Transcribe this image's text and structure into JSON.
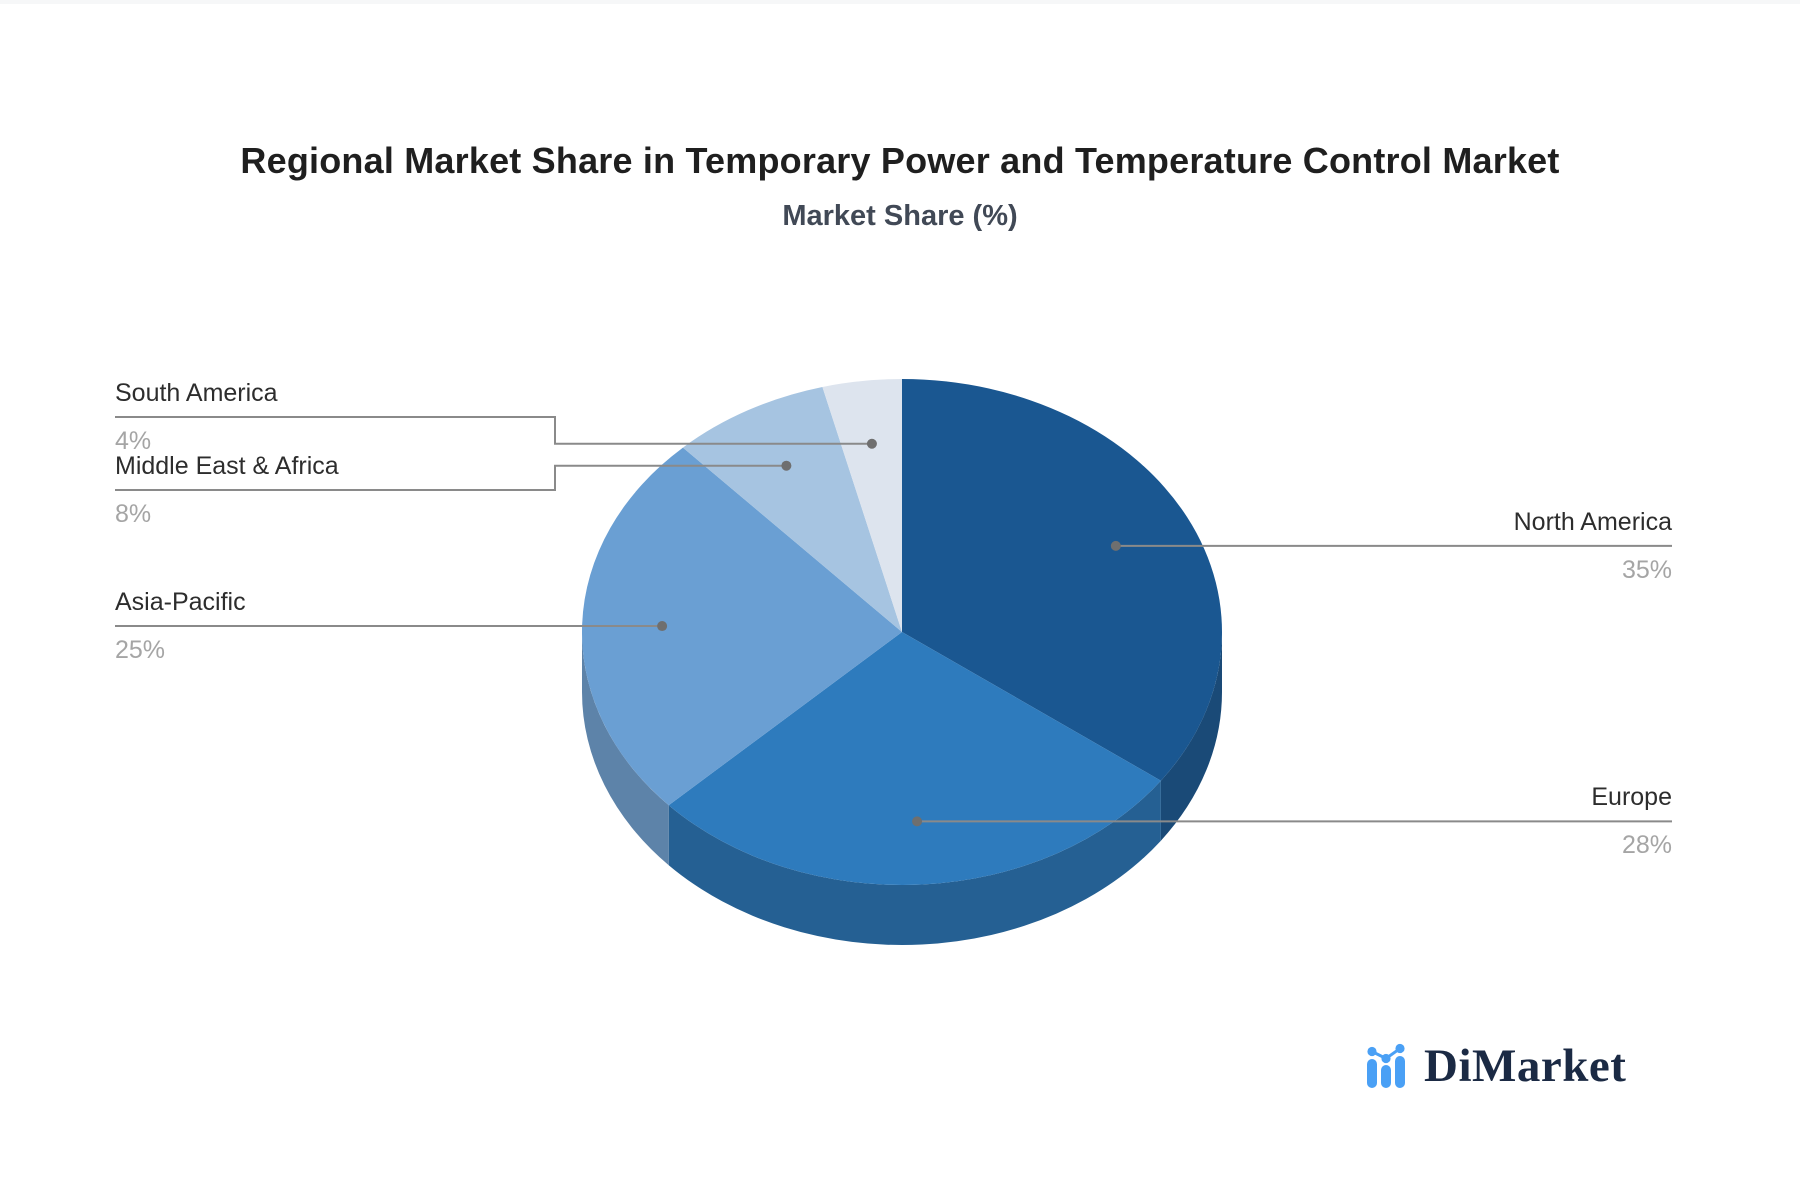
{
  "header": {
    "title": "Regional Market Share in Temporary Power and Temperature Control Market",
    "subtitle": "Market Share (%)"
  },
  "chart_data": {
    "type": "pie",
    "title": "Regional Market Share in Temporary Power and Temperature Control Market",
    "subtitle": "Market Share (%)",
    "unit": "%",
    "categories": [
      "North America",
      "Europe",
      "Asia-Pacific",
      "Middle East & Africa",
      "South America"
    ],
    "values": [
      35,
      28,
      25,
      8,
      4
    ],
    "colors": [
      "#1a5791",
      "#2e7bbd",
      "#6a9fd3",
      "#a6c4e1",
      "#dde4ee"
    ],
    "side_colors": [
      "#1a4a77",
      "#256093",
      "#5d83a9",
      "#8fa9c4",
      "#c3cdd9"
    ],
    "start_angle_deg": 0,
    "direction": "clockwise",
    "style": "3d",
    "legend_position": "callout-labels",
    "connector_color": "#8a8a8a",
    "dot_color": "#6f6f6f"
  },
  "callouts": [
    {
      "name": "North America",
      "pct": "35%"
    },
    {
      "name": "Europe",
      "pct": "28%"
    },
    {
      "name": "Asia-Pacific",
      "pct": "25%"
    },
    {
      "name": "Middle East & Africa",
      "pct": "8%"
    },
    {
      "name": "South America",
      "pct": "4%"
    }
  ],
  "logo": {
    "text": "DiMarket",
    "icon_color": "#4aa0f5",
    "text_color": "#1b2a44"
  }
}
